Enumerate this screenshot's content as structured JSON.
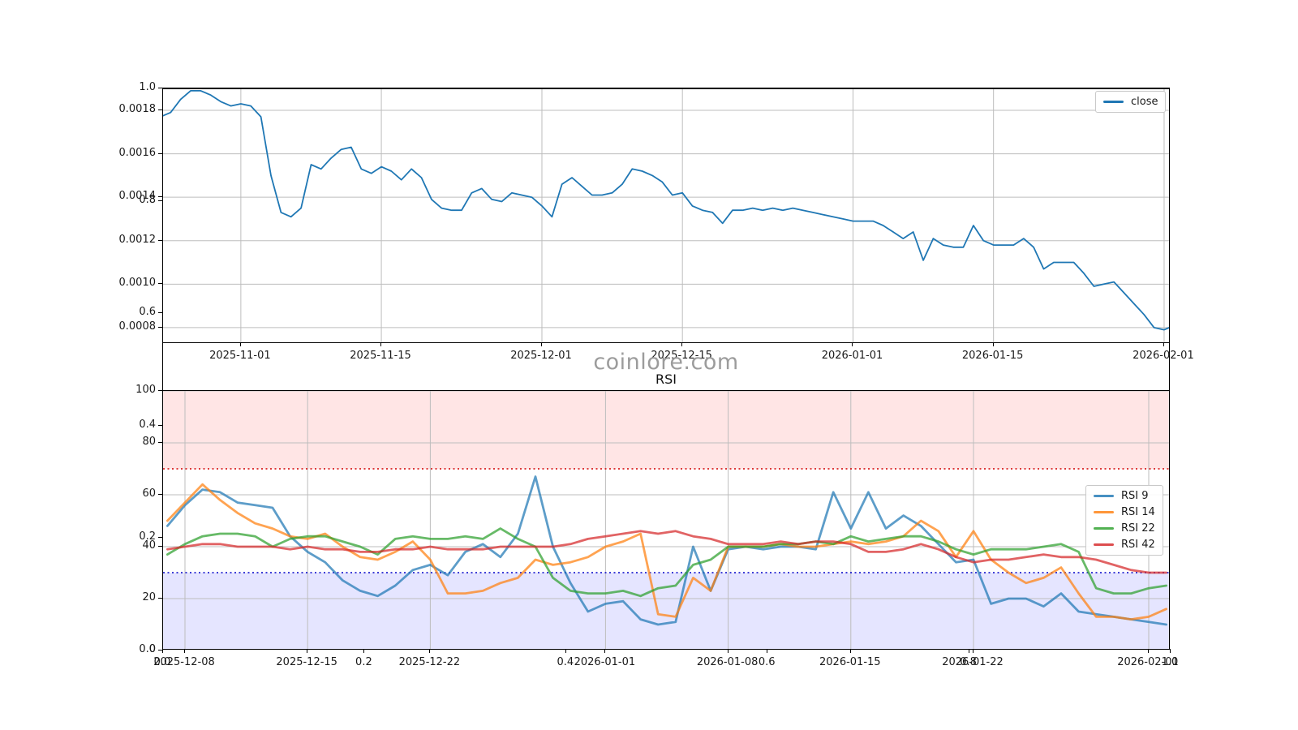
{
  "watermark": "coinlore.com",
  "hidden_axis": {
    "y_ticks": [
      "1.0",
      "0.8",
      "0.6",
      "0.4",
      "0.2",
      "0.0"
    ],
    "x_ticks": [
      "0.0",
      "0.2",
      "0.4",
      "0.6",
      "0.8",
      "1.0"
    ]
  },
  "chart_data": [
    {
      "id": "price",
      "type": "line",
      "title": "",
      "legend_entries": [
        "close"
      ],
      "legend_position": "top-right",
      "grid": true,
      "x_start_date": "2025-10-24",
      "x_interval_days": 1,
      "xlim_days": [
        0.25,
        100.65
      ],
      "ylim": [
        0.000725,
        0.001897
      ],
      "x_ticks": [
        {
          "offset": 8,
          "label": "2025-11-01"
        },
        {
          "offset": 22,
          "label": "2025-11-15"
        },
        {
          "offset": 38,
          "label": "2025-12-01"
        },
        {
          "offset": 52,
          "label": "2025-12-15"
        },
        {
          "offset": 69,
          "label": "2026-01-01"
        },
        {
          "offset": 83,
          "label": "2026-01-15"
        },
        {
          "offset": 100,
          "label": "2026-02-01"
        }
      ],
      "y_ticks": [
        {
          "value": 0.0018,
          "label": "0.0018"
        },
        {
          "value": 0.0016,
          "label": "0.0016"
        },
        {
          "value": 0.0014,
          "label": "0.0014"
        },
        {
          "value": 0.0012,
          "label": "0.0012"
        },
        {
          "value": 0.001,
          "label": "0.0010"
        },
        {
          "value": 0.0008,
          "label": "0.0008"
        }
      ],
      "series": [
        {
          "name": "close",
          "color": "#1f77b4",
          "opacity": 1,
          "width": 1.8,
          "values": [
            0.00177,
            0.00179,
            0.00185,
            0.00189,
            0.00189,
            0.00187,
            0.00184,
            0.00182,
            0.00183,
            0.00182,
            0.00177,
            0.0015,
            0.00133,
            0.00131,
            0.00135,
            0.00155,
            0.00153,
            0.00158,
            0.00162,
            0.00163,
            0.00153,
            0.00151,
            0.00154,
            0.00152,
            0.00148,
            0.00153,
            0.00149,
            0.00139,
            0.00135,
            0.00134,
            0.00134,
            0.00142,
            0.00144,
            0.00139,
            0.00138,
            0.00142,
            0.00141,
            0.0014,
            0.00136,
            0.00131,
            0.00146,
            0.00149,
            0.00145,
            0.00141,
            0.00141,
            0.00142,
            0.00146,
            0.00153,
            0.00152,
            0.0015,
            0.00147,
            0.00141,
            0.00142,
            0.00136,
            0.00134,
            0.00133,
            0.00128,
            0.00134,
            0.00134,
            0.00135,
            0.00134,
            0.00135,
            0.00134,
            0.00135,
            0.00134,
            0.00133,
            0.00132,
            0.00131,
            0.0013,
            0.00129,
            0.00129,
            0.00129,
            0.00127,
            0.00124,
            0.00121,
            0.00124,
            0.00111,
            0.00121,
            0.00118,
            0.00117,
            0.00117,
            0.00127,
            0.0012,
            0.00118,
            0.00118,
            0.00118,
            0.00121,
            0.00117,
            0.00107,
            0.0011,
            0.0011,
            0.0011,
            0.00105,
            0.00099,
            0.001,
            0.00101,
            0.00096,
            0.00091,
            0.00086,
            0.0008,
            0.00079,
            0.00081
          ]
        }
      ]
    },
    {
      "id": "rsi",
      "type": "line",
      "title": "RSI",
      "legend_position": "right",
      "grid": true,
      "x_start_date": "2025-12-07",
      "x_interval_days": 1,
      "xlim_days": [
        -0.25,
        57.25
      ],
      "ylim": [
        0,
        100
      ],
      "x_ticks": [
        {
          "offset": 1,
          "label": "2025-12-08"
        },
        {
          "offset": 8,
          "label": "2025-12-15"
        },
        {
          "offset": 15,
          "label": "2025-12-22"
        },
        {
          "offset": 25,
          "label": "2026-01-01"
        },
        {
          "offset": 32,
          "label": "2026-01-08"
        },
        {
          "offset": 39,
          "label": "2026-01-15"
        },
        {
          "offset": 46,
          "label": "2026-01-22"
        },
        {
          "offset": 56,
          "label": "2026-02-01"
        }
      ],
      "y_ticks": [
        {
          "value": 100,
          "label": "100"
        },
        {
          "value": 80,
          "label": "80"
        },
        {
          "value": 60,
          "label": "60"
        },
        {
          "value": 40,
          "label": "40"
        },
        {
          "value": 20,
          "label": "20"
        },
        {
          "value": 0,
          "label": "0"
        }
      ],
      "bands": [
        {
          "from": 70,
          "to": 100,
          "color": "rgba(255,0,0,0.10)",
          "name": "overbought-zone"
        },
        {
          "from": 0,
          "to": 30,
          "color": "rgba(0,0,255,0.10)",
          "name": "oversold-zone"
        }
      ],
      "hlines": [
        {
          "value": 70,
          "color": "#d40000",
          "style": "dotted",
          "name": "overbought-threshold"
        },
        {
          "value": 30,
          "color": "#0000c8",
          "style": "dotted",
          "name": "oversold-threshold"
        }
      ],
      "series": [
        {
          "name": "RSI 9",
          "color": "#1f77b4",
          "opacity": 0.72,
          "width": 2.8,
          "values": [
            48,
            56,
            62,
            61,
            57,
            56,
            55,
            44,
            38,
            34,
            27,
            23,
            21,
            25,
            31,
            33,
            29,
            38,
            41,
            36,
            45,
            67,
            40,
            26,
            15,
            18,
            19,
            12,
            10,
            11,
            40,
            23,
            39,
            40,
            39,
            40,
            40,
            39,
            61,
            47,
            61,
            47,
            52,
            48,
            41,
            34,
            35,
            18,
            20,
            20,
            17,
            22,
            15,
            14,
            13,
            12,
            11,
            10
          ]
        },
        {
          "name": "RSI 14",
          "color": "#ff7f0e",
          "opacity": 0.72,
          "width": 2.8,
          "values": [
            50,
            57,
            64,
            58,
            53,
            49,
            47,
            44,
            43,
            45,
            40,
            36,
            35,
            38,
            42,
            35,
            22,
            22,
            23,
            26,
            28,
            35,
            33,
            34,
            36,
            40,
            42,
            45,
            14,
            13,
            28,
            23,
            40,
            40,
            40,
            41,
            40,
            40,
            41,
            42,
            41,
            42,
            44,
            50,
            46,
            36,
            46,
            35,
            30,
            26,
            28,
            32,
            22,
            13,
            13,
            12,
            13,
            16
          ]
        },
        {
          "name": "RSI 22",
          "color": "#2ca02c",
          "opacity": 0.72,
          "width": 2.8,
          "values": [
            37,
            41,
            44,
            45,
            45,
            44,
            40,
            43,
            44,
            44,
            42,
            40,
            37,
            43,
            44,
            43,
            43,
            44,
            43,
            47,
            43,
            40,
            28,
            23,
            22,
            22,
            23,
            21,
            24,
            25,
            33,
            35,
            40,
            40,
            40,
            41,
            41,
            42,
            41,
            44,
            42,
            43,
            44,
            44,
            42,
            39,
            37,
            39,
            39,
            39,
            40,
            41,
            38,
            24,
            22,
            22,
            24,
            25
          ]
        },
        {
          "name": "RSI 42",
          "color": "#d62728",
          "opacity": 0.72,
          "width": 2.8,
          "values": [
            39,
            40,
            41,
            41,
            40,
            40,
            40,
            39,
            40,
            39,
            39,
            38,
            38,
            39,
            39,
            40,
            39,
            39,
            39,
            40,
            40,
            40,
            40,
            41,
            43,
            44,
            45,
            46,
            45,
            46,
            44,
            43,
            41,
            41,
            41,
            42,
            41,
            42,
            42,
            41,
            38,
            38,
            39,
            41,
            39,
            36,
            34,
            35,
            35,
            36,
            37,
            36,
            36,
            35,
            33,
            31,
            30,
            30
          ]
        }
      ]
    }
  ]
}
